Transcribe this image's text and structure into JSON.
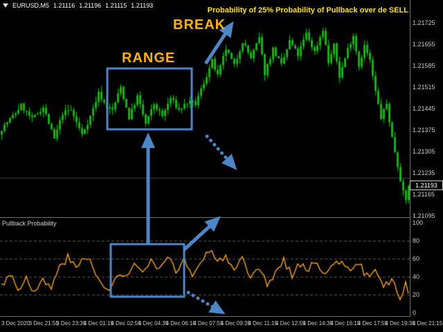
{
  "quote": {
    "symbol": "EURUSD,M5",
    "open": "1.21116",
    "high": "1.21196",
    "low": "1.21115",
    "close": "1.21193"
  },
  "annotations": {
    "note": "Probability of 25% Probability of Pullback over de SELL",
    "break_label": "BREAK",
    "range_label": "RANGE"
  },
  "main_chart": {
    "price_ticks": [
      "1.21725",
      "1.21655",
      "1.21585",
      "1.21515",
      "1.21445",
      "1.21375",
      "1.21305",
      "1.21235",
      "1.21165",
      "1.21095"
    ],
    "current_price": "1.21193"
  },
  "oscillator": {
    "title": "Pullback Probability",
    "scale_ticks": [
      "100",
      "80",
      "60",
      "40",
      "20",
      "0"
    ],
    "grid_levels": [
      80,
      60,
      40,
      20
    ]
  },
  "time_axis": [
    "3 Dec 2020",
    "3 Dec 21:55",
    "3 Dec 23:35",
    "4 Dec 01:15",
    "4 Dec 02:55",
    "4 Dec 04:35",
    "4 Dec 06:15",
    "4 Dec 07:55",
    "4 Dec 09:35",
    "4 Dec 11:15",
    "4 Dec 12:55",
    "4 Dec 14:35",
    "4 Dec 16:15",
    "4 Dec 17:55",
    "4 Dec 19:35",
    "4 Dec 21:15"
  ],
  "colors": {
    "candle_green": "#00C000",
    "oscillator_orange": "#FFA500",
    "annotation_blue": "#4A86C8",
    "label_gold": "#FFB300",
    "note_yellow": "#FFE400",
    "axis_text": "#C9C9C9"
  },
  "chart_data": [
    {
      "type": "candlestick",
      "name": "EURUSD M5 price",
      "bars": 148,
      "price_axis_range": [
        1.21075,
        1.21745
      ],
      "hline_price": 1.2122,
      "last_close": 1.21193,
      "waypoints_close": [
        [
          0,
          1.2138
        ],
        [
          4,
          1.2142
        ],
        [
          7,
          1.21455
        ],
        [
          11,
          1.2141
        ],
        [
          15,
          1.2145
        ],
        [
          19,
          1.21345
        ],
        [
          22,
          1.2143
        ],
        [
          25,
          1.2144
        ],
        [
          29,
          1.2136
        ],
        [
          32,
          1.2142
        ],
        [
          35,
          1.21495
        ],
        [
          38,
          1.2145
        ],
        [
          40,
          1.2144
        ],
        [
          43,
          1.21515
        ],
        [
          46,
          1.21415
        ],
        [
          49,
          1.21485
        ],
        [
          52,
          1.21395
        ],
        [
          55,
          1.2146
        ],
        [
          58,
          1.2142
        ],
        [
          61,
          1.2148
        ],
        [
          64,
          1.2144
        ],
        [
          67,
          1.21465
        ],
        [
          70,
          1.2146
        ],
        [
          73,
          1.2153
        ],
        [
          76,
          1.216
        ],
        [
          78,
          1.2155
        ],
        [
          81,
          1.2164
        ],
        [
          84,
          1.21585
        ],
        [
          87,
          1.21665
        ],
        [
          90,
          1.2161
        ],
        [
          93,
          1.21675
        ],
        [
          95,
          1.2156
        ],
        [
          98,
          1.2164
        ],
        [
          101,
          1.21585
        ],
        [
          104,
          1.21665
        ],
        [
          107,
          1.2162
        ],
        [
          110,
          1.2169
        ],
        [
          113,
          1.2163
        ],
        [
          116,
          1.21705
        ],
        [
          118,
          1.21595
        ],
        [
          120,
          1.2165
        ],
        [
          122,
          1.2155
        ],
        [
          125,
          1.2164
        ],
        [
          127,
          1.21685
        ],
        [
          129,
          1.21585
        ],
        [
          131,
          1.2165
        ],
        [
          133,
          1.216
        ],
        [
          135,
          1.215
        ],
        [
          137,
          1.21415
        ],
        [
          139,
          1.2146
        ],
        [
          141,
          1.2135
        ],
        [
          143,
          1.2126
        ],
        [
          145,
          1.2117
        ],
        [
          146,
          1.21145
        ],
        [
          147,
          1.21193
        ]
      ]
    },
    {
      "type": "line",
      "name": "Pullback Probability",
      "range": [
        0,
        100
      ],
      "waypoints": [
        [
          0,
          30
        ],
        [
          3,
          45
        ],
        [
          6,
          25
        ],
        [
          9,
          40
        ],
        [
          12,
          22
        ],
        [
          15,
          35
        ],
        [
          18,
          28
        ],
        [
          21,
          50
        ],
        [
          24,
          62
        ],
        [
          27,
          48
        ],
        [
          30,
          63
        ],
        [
          33,
          55
        ],
        [
          36,
          30
        ],
        [
          39,
          22
        ],
        [
          42,
          45
        ],
        [
          45,
          38
        ],
        [
          48,
          55
        ],
        [
          51,
          42
        ],
        [
          54,
          58
        ],
        [
          57,
          45
        ],
        [
          60,
          60
        ],
        [
          63,
          48
        ],
        [
          66,
          58
        ],
        [
          69,
          42
        ],
        [
          72,
          55
        ],
        [
          75,
          70
        ],
        [
          78,
          55
        ],
        [
          81,
          65
        ],
        [
          84,
          45
        ],
        [
          87,
          58
        ],
        [
          90,
          35
        ],
        [
          93,
          50
        ],
        [
          96,
          30
        ],
        [
          99,
          45
        ],
        [
          102,
          58
        ],
        [
          105,
          42
        ],
        [
          108,
          55
        ],
        [
          111,
          48
        ],
        [
          114,
          58
        ],
        [
          117,
          42
        ],
        [
          120,
          52
        ],
        [
          123,
          60
        ],
        [
          126,
          45
        ],
        [
          129,
          55
        ],
        [
          132,
          40
        ],
        [
          135,
          48
        ],
        [
          138,
          30
        ],
        [
          141,
          38
        ],
        [
          144,
          15
        ],
        [
          146,
          30
        ],
        [
          147,
          25
        ]
      ]
    }
  ]
}
